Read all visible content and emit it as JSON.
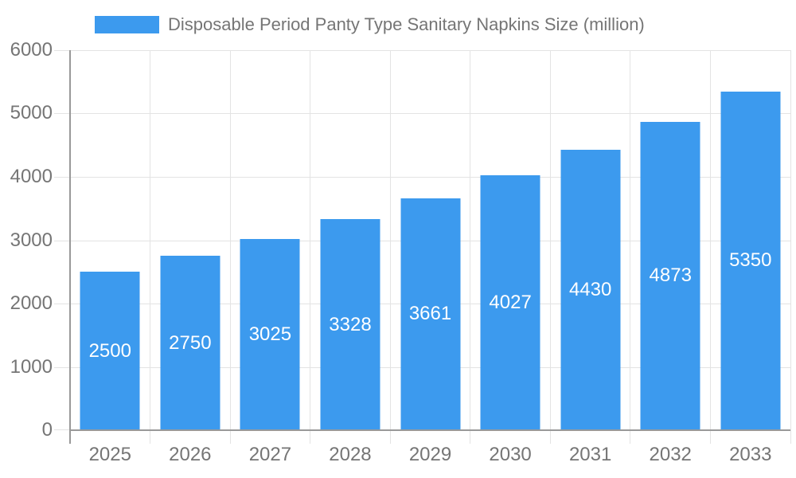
{
  "legend": {
    "position": "top"
  },
  "chart_data": {
    "type": "bar",
    "title": "Disposable Period Panty Type Sanitary Napkins Size (million)",
    "categories": [
      "2025",
      "2026",
      "2027",
      "2028",
      "2029",
      "2030",
      "2031",
      "2032",
      "2033"
    ],
    "series": [
      {
        "name": "Disposable Period Panty Type Sanitary Napkins Size (million)",
        "values": [
          2500,
          2750,
          3025,
          3328,
          3661,
          4027,
          4430,
          4873,
          5350
        ],
        "color": "#3C9AEE"
      }
    ],
    "xlabel": "",
    "ylabel": "",
    "ylim": [
      0,
      6000
    ],
    "yticks": [
      0,
      1000,
      2000,
      3000,
      4000,
      5000,
      6000
    ],
    "grid": true,
    "legend_position": "top",
    "bar_labels_shown": true,
    "colors": {
      "bar": "#3C9AEE",
      "bar_label_text": "#FFFFFF",
      "axis_text": "#757575",
      "legend_text": "#757575",
      "gridline": "#E3E3E3",
      "axis_line": "#999999",
      "background": "#FFFFFF"
    }
  }
}
